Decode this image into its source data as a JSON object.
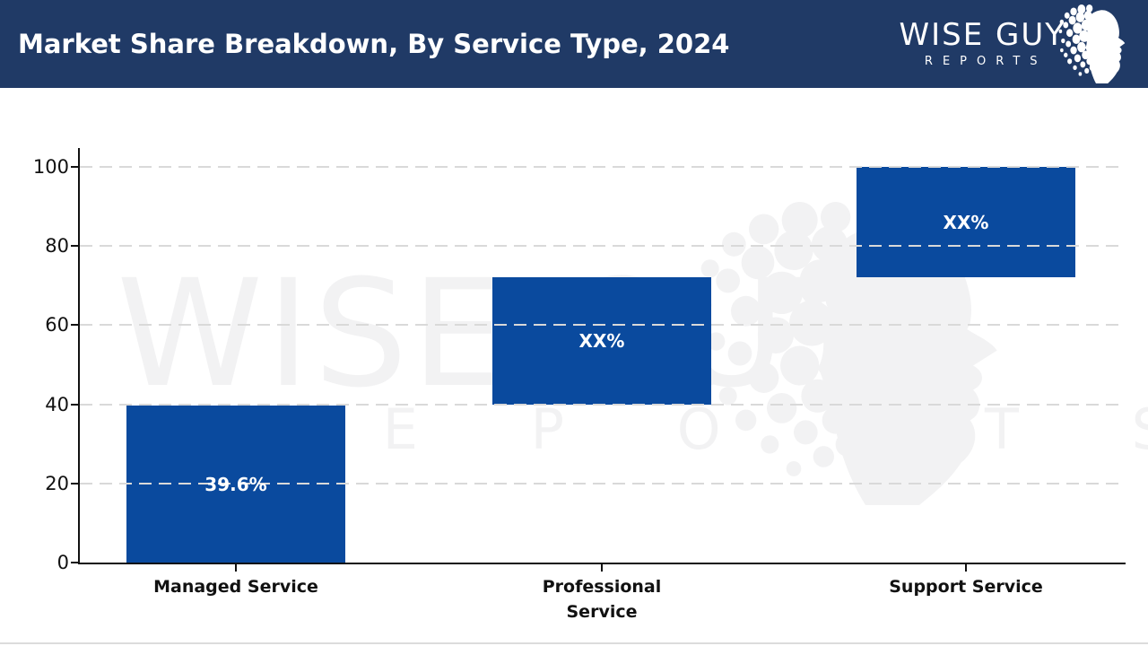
{
  "header": {
    "title": "Market Share Breakdown, By Service Type, 2024",
    "bg_color": "#203a66",
    "logo": {
      "wordmark": "WISE GUY",
      "subtext": "REPORTS"
    }
  },
  "watermark": {
    "wordmark": "WISE GUY",
    "subtext": "R E P O R T S"
  },
  "chart_data": {
    "type": "bar",
    "variant": "floating-waterfall-segments",
    "title": "Market Share Breakdown, By Service Type, 2024",
    "categories": [
      "Managed Service",
      "Professional\nService",
      "Support Service"
    ],
    "series": [
      {
        "name": "Market share by service type",
        "segments": [
          {
            "category": "Managed Service",
            "from": 0,
            "to": 39.6,
            "label": "39.6%"
          },
          {
            "category": "Professional Service",
            "from": 40,
            "to": 72,
            "label": "XX%"
          },
          {
            "category": "Support Service",
            "from": 72,
            "to": 100,
            "label": "XX%"
          }
        ]
      }
    ],
    "xlabel": "",
    "ylabel": "",
    "ylim": [
      0,
      100
    ],
    "yticks": [
      0,
      20,
      40,
      60,
      80,
      100
    ],
    "grid": "horizontal dashed gridlines drawn above bars",
    "legend": "none",
    "colors": {
      "bar": "#0a4a9e",
      "bar_label": "#ffffff",
      "grid": "#d9d9d9",
      "axis": "#111111",
      "tick_label": "#111111",
      "watermark": "#f2f2f3"
    }
  },
  "footer": {
    "divider_color": "#dcdcdc"
  }
}
